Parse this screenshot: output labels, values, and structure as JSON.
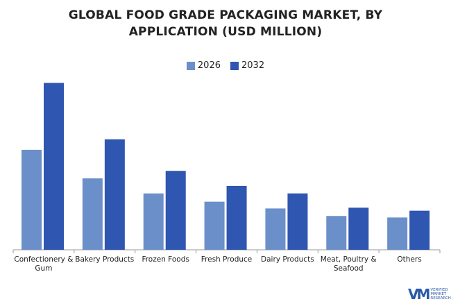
{
  "title_lines": [
    "GLOBAL FOOD GRADE PACKAGING MARKET, BY",
    "APPLICATION (USD MILLION)"
  ],
  "legend": [
    {
      "label": "2026",
      "color": "#6b8fc9"
    },
    {
      "label": "2032",
      "color": "#2f56b0"
    }
  ],
  "logo": {
    "mark": "VM",
    "lines": [
      "VERIFIED",
      "MARKET",
      "RESEARCH"
    ]
  },
  "chart_data": {
    "type": "bar",
    "categories": [
      "Confectionery & Gum",
      "Bakery Products",
      "Frozen Foods",
      "Fresh Produce",
      "Dairy Products",
      "Meat, Poultry & Seafood",
      "Others"
    ],
    "series": [
      {
        "name": "2026",
        "values": [
          133,
          95,
          75,
          64,
          55,
          45,
          43
        ]
      },
      {
        "name": "2032",
        "values": [
          222,
          147,
          105,
          85,
          75,
          56,
          52
        ]
      }
    ],
    "ylim": [
      0,
      240
    ],
    "grid": false,
    "legend_position": "top-center",
    "xlabel": "",
    "ylabel": ""
  }
}
